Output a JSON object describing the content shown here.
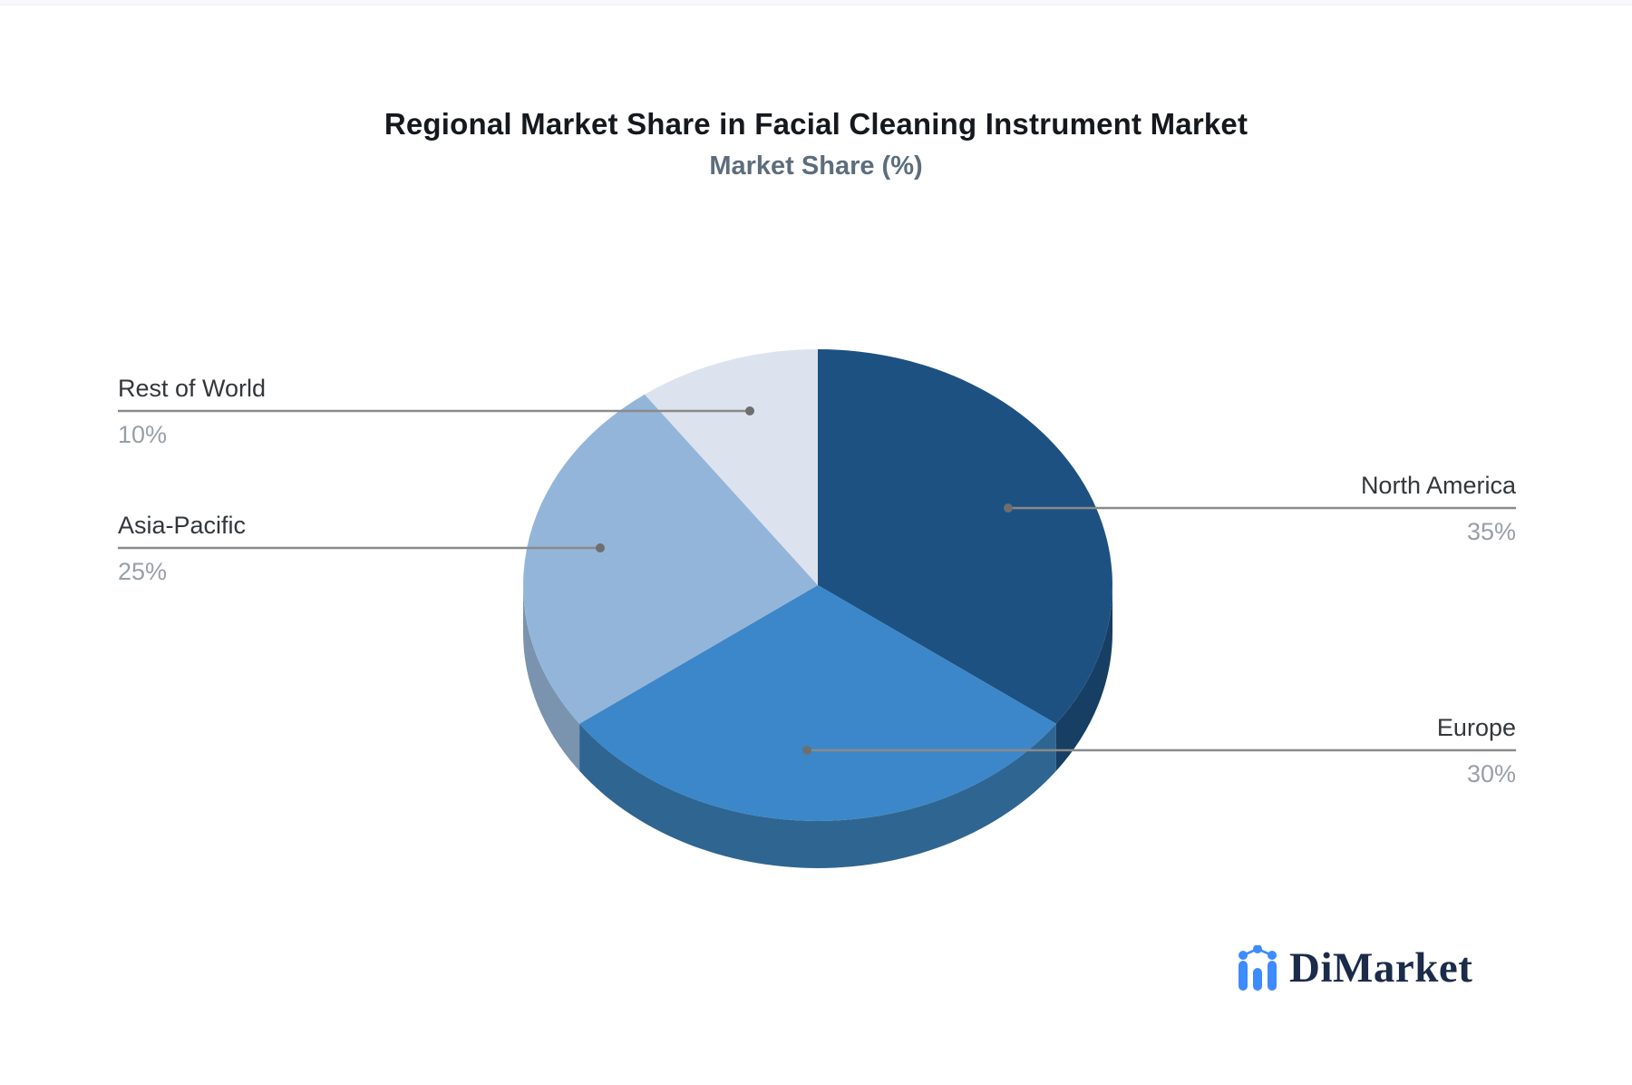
{
  "header": {
    "title": "Regional Market Share in Facial Cleaning Instrument Market",
    "subtitle": "Market Share (%)"
  },
  "chart_data": {
    "type": "pie",
    "style": "3d-pie",
    "title": "Regional Market Share in Facial Cleaning Instrument Market",
    "subtitle": "Market Share (%)",
    "unit": "%",
    "start_angle": "12-o-clock",
    "direction": "clockwise",
    "label_layout": "callout-lines",
    "series": [
      {
        "name": "North America",
        "value": 35,
        "pct_label": "35%",
        "color": "#1d5181",
        "side_color": "#173e63",
        "label_side": "right"
      },
      {
        "name": "Europe",
        "value": 30,
        "pct_label": "30%",
        "color": "#3c87c9",
        "side_color": "#2f6591",
        "label_side": "right"
      },
      {
        "name": "Asia-Pacific",
        "value": 25,
        "pct_label": "25%",
        "color": "#93b5d9",
        "side_color": "#7a93ae",
        "label_side": "left"
      },
      {
        "name": "Rest of World",
        "value": 10,
        "pct_label": "10%",
        "color": "#dce3ee",
        "side_color": "#c3ccda",
        "label_side": "left"
      }
    ],
    "leader_line_color": "#8a8a8a",
    "dot_color": "#6e6e6e",
    "label_color": "#33373b",
    "percent_color": "#999fa6"
  },
  "logo": {
    "text": "DiMarket",
    "icon": "bar-chart-logo-icon",
    "icon_color": "#3d8bfd",
    "text_color": "#1b2b4a"
  }
}
